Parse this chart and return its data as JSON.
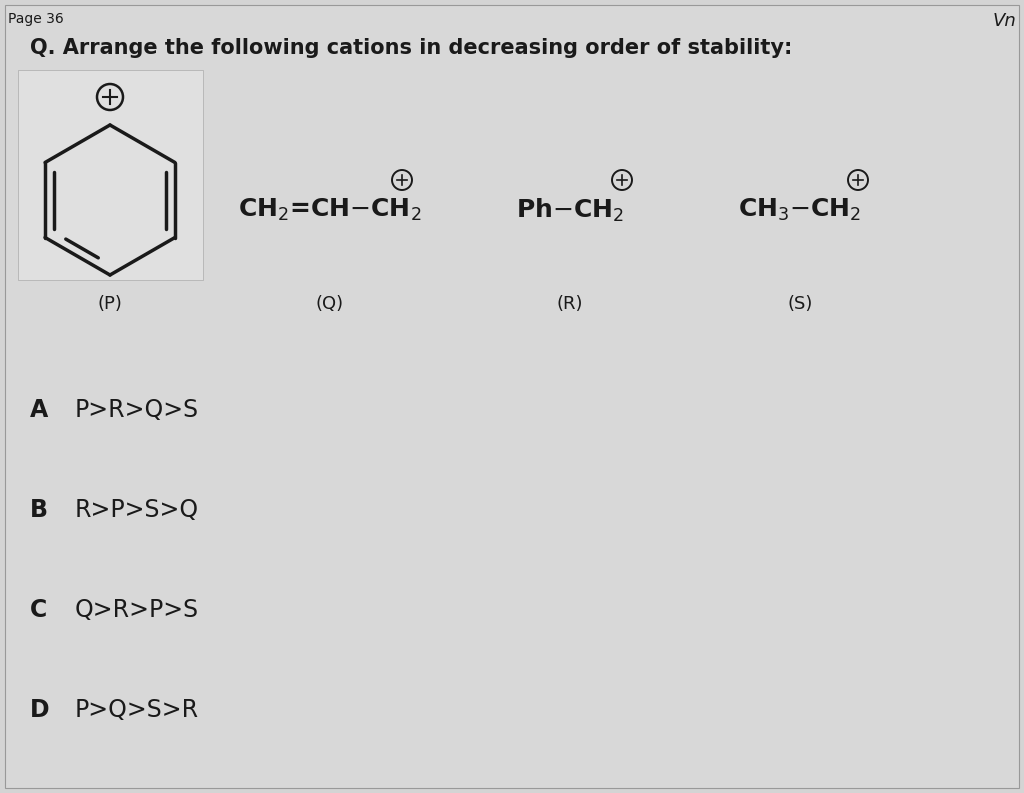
{
  "page_label": "Page 36",
  "corner_label": "Vn",
  "question": "Q. Arrange the following cations in decreasing order of stability:",
  "options": [
    {
      "letter": "A",
      "text": "P>R>Q>S"
    },
    {
      "letter": "B",
      "text": "R>P>S>Q"
    },
    {
      "letter": "C",
      "text": "Q>R>P>S"
    },
    {
      "letter": "D",
      "text": "P>Q>S>R"
    }
  ],
  "bg_color": "#d4d4d4",
  "content_bg": "#e8e8e8",
  "text_color": "#1a1a1a",
  "title_fontsize": 15,
  "option_fontsize": 17,
  "page_fontsize": 10,
  "struct_fontsize": 18
}
